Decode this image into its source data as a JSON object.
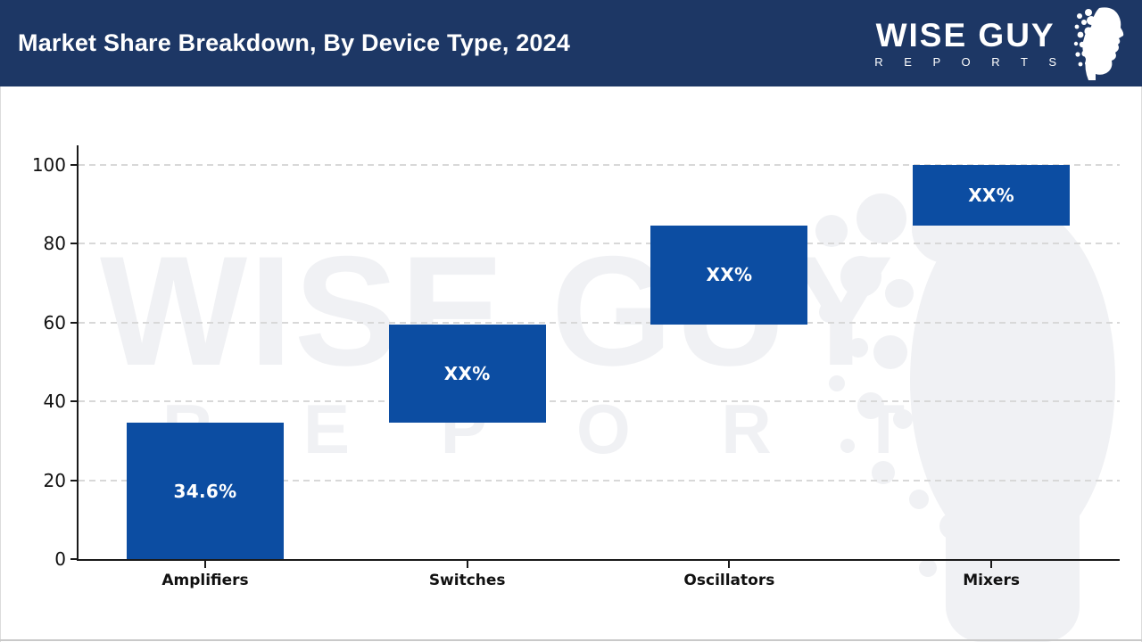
{
  "header": {
    "title": "Market Share Breakdown, By Device Type, 2024",
    "bg_color": "#1d3765",
    "logo": {
      "line1": "WISE GUY",
      "line2": "R E P O R T S"
    }
  },
  "watermark": {
    "line1": "WISE GUY",
    "line2": "R E P O R T S"
  },
  "chart_data": {
    "type": "bar",
    "subtype": "waterfall-floating-bars",
    "title": "Market Share Breakdown, By Device Type, 2024",
    "categories": [
      "Amplifiers",
      "Switches",
      "Oscillators",
      "Mixers"
    ],
    "segments": [
      {
        "category": "Amplifiers",
        "start": 0,
        "end": 34.6,
        "label": "34.6%"
      },
      {
        "category": "Switches",
        "start": 34.6,
        "end": 59.6,
        "label": "XX%"
      },
      {
        "category": "Oscillators",
        "start": 59.6,
        "end": 84.6,
        "label": "XX%"
      },
      {
        "category": "Mixers",
        "start": 84.6,
        "end": 100,
        "label": "XX%"
      }
    ],
    "yticks": [
      0,
      20,
      40,
      60,
      80,
      100
    ],
    "ylim": [
      0,
      105
    ],
    "xlabel": "",
    "ylabel": "",
    "grid": "horizontal-dashed",
    "legend": "none",
    "bar_color": "#0c4da2",
    "bar_label_color": "#ffffff",
    "axis_color": "#1a1a1a",
    "grid_color": "#d8d8d8"
  }
}
